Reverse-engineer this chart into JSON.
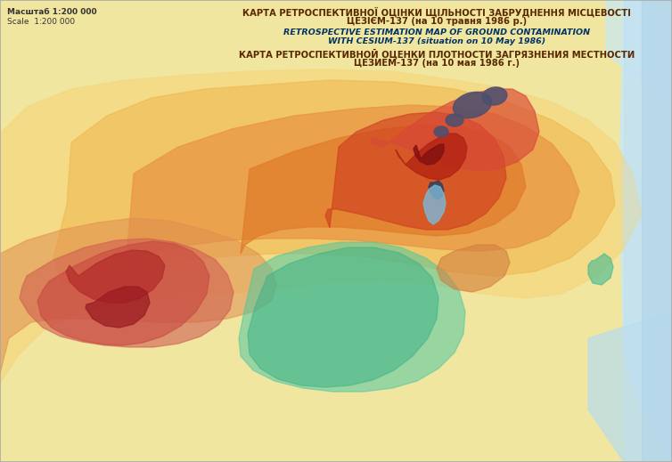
{
  "title_line1_uk": "КАРТА РЕТРОСПЕКТИВНОЇ ОЦІНКИ ЩІЛЬНОСТІ ЗАБРУДНЕННЯ МІСЦЕВОСТІ",
  "title_line2_uk": "ЦЕЗІЄМ-137 (на 10 травня 1986 р.)",
  "title_line1_en": "RETROSPECTIVE ESTIMATION MAP OF GROUND CONTAMINATION",
  "title_line2_en": "WITH CESIUM-137 (situation on 10 May 1986)",
  "title_line1_ru": "КАРТА РЕТРОСПЕКТИВНОЙ ОЦЕНКИ ПЛОТНОСТИ ЗАГРЯЗНЕНИЯ МЕСТНОСТИ",
  "title_line2_ru": "ЦЕЗИЕМ-137 (на 10 мая 1986 г.)",
  "scale_label": "Масштаб 1:200 000",
  "scale_label2": "Scale  1:200 000",
  "bg_color": "#f0e6a0",
  "title_color": "#5a2800",
  "title_en_color": "#003366",
  "figsize": [
    7.54,
    5.19
  ],
  "dpi": 100,
  "border_color": "#aaaaaa"
}
